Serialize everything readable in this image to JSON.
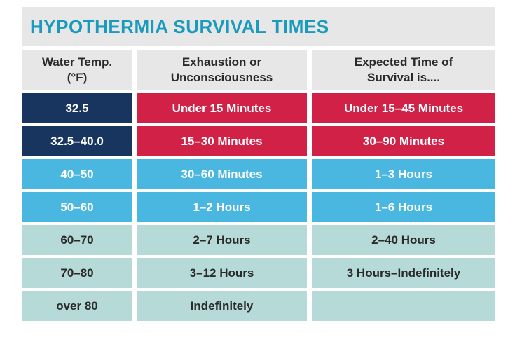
{
  "title": "HYPOTHERMIA SURVIVAL TIMES",
  "colors": {
    "band": "#e7e7e7",
    "teal": "#1a9abd",
    "navy": "#17355f",
    "red": "#d22147",
    "sky": "#4ab7e0",
    "pale": "#b5dad7",
    "dark": "#2b2a2b"
  },
  "table": {
    "headers": [
      {
        "line1": "Water Temp.",
        "line2": "(°F)"
      },
      {
        "line1": "Exhaustion or",
        "line2": "Unconsciousness"
      },
      {
        "line1": "Expected Time of",
        "line2": "Survival is...."
      }
    ],
    "rows": [
      {
        "cells": [
          "32.5",
          "Under 15 Minutes",
          "Under 15–45 Minutes"
        ]
      },
      {
        "cells": [
          "32.5–40.0",
          "15–30 Minutes",
          "30–90 Minutes"
        ]
      },
      {
        "cells": [
          "40–50",
          "30–60 Minutes",
          "1–3 Hours"
        ]
      },
      {
        "cells": [
          "50–60",
          "1–2 Hours",
          "1–6 Hours"
        ]
      },
      {
        "cells": [
          "60–70",
          "2–7 Hours",
          "2–40 Hours"
        ]
      },
      {
        "cells": [
          "70–80",
          "3–12 Hours",
          "3 Hours–Indefinitely"
        ]
      },
      {
        "cells": [
          "over 80",
          "Indefinitely",
          ""
        ]
      }
    ]
  },
  "chart_data": {
    "type": "table",
    "title": "HYPOTHERMIA SURVIVAL TIMES",
    "columns": [
      "Water Temp. (°F)",
      "Exhaustion or Unconsciousness",
      "Expected Time of Survival is...."
    ],
    "rows": [
      [
        "32.5",
        "Under 15 Minutes",
        "Under 15–45 Minutes"
      ],
      [
        "32.5–40.0",
        "15–30 Minutes",
        "30–90 Minutes"
      ],
      [
        "40–50",
        "30–60 Minutes",
        "1–3 Hours"
      ],
      [
        "50–60",
        "1–2 Hours",
        "1–6 Hours"
      ],
      [
        "60–70",
        "2–7 Hours",
        "2–40 Hours"
      ],
      [
        "70–80",
        "3–12 Hours",
        "3 Hours–Indefinitely"
      ],
      [
        "over 80",
        "Indefinitely",
        ""
      ]
    ],
    "row_colors": [
      "navy/red",
      "navy/red",
      "sky",
      "sky",
      "pale",
      "pale",
      "pale"
    ],
    "legend": "none",
    "layout": "title band top-left, 3-column table with white gutters"
  }
}
